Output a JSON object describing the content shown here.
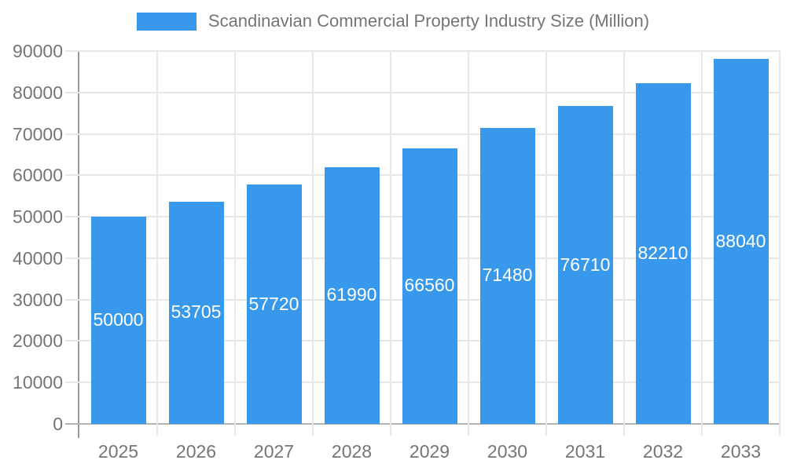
{
  "chart_data": {
    "type": "bar",
    "title": "Scandinavian Commercial Property Industry Size (Million)",
    "categories": [
      "2025",
      "2026",
      "2027",
      "2028",
      "2029",
      "2030",
      "2031",
      "2032",
      "2033"
    ],
    "values": [
      50000,
      53705,
      57720,
      61990,
      66560,
      71480,
      76710,
      82210,
      88040
    ],
    "bar_labels": [
      "50000",
      "53705",
      "57720",
      "61990",
      "66560",
      "71480",
      "76710",
      "82210",
      "88040"
    ],
    "yticks": [
      "0",
      "10000",
      "20000",
      "30000",
      "40000",
      "50000",
      "60000",
      "70000",
      "80000",
      "90000"
    ],
    "ylim": [
      0,
      90000
    ],
    "xlabel": "",
    "ylabel": "",
    "grid": "on",
    "legend_position": "top",
    "colors": {
      "bar": "#3899EC",
      "bar_label_text": "#ffffff",
      "axis_text": "#757575",
      "gridline": "#e7e7e7",
      "baseline": "#b3b3b3",
      "axis_line": "#999999",
      "background": "#ffffff"
    }
  }
}
